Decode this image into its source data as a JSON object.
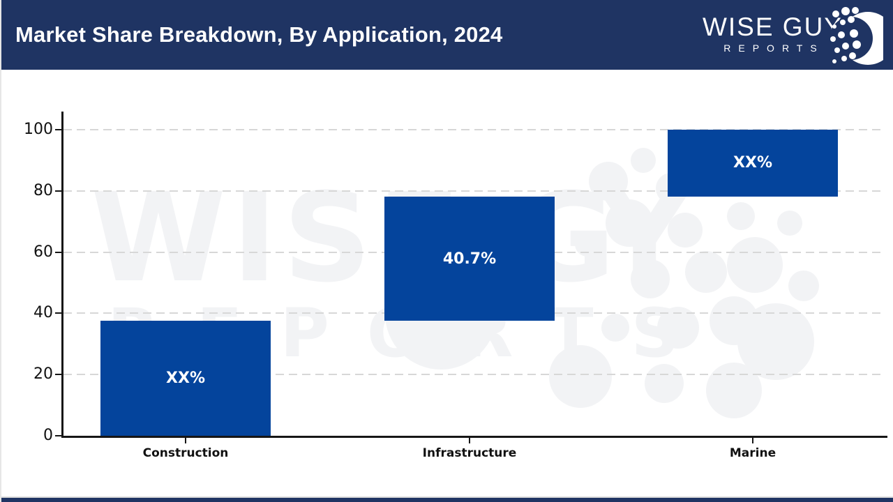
{
  "header": {
    "title": "Market Share Breakdown, By Application, 2024",
    "bg_color": "#1f3463",
    "logo": {
      "line1": "WISE GUY",
      "line2": "REPORTS"
    }
  },
  "watermark": {
    "line1": "WISE G",
    "line1b": "Y",
    "line2": "REPORTS"
  },
  "chart_data": {
    "type": "bar",
    "subtype": "floating-waterfall",
    "title": "Market Share Breakdown, By Application, 2024",
    "categories": [
      "Construction",
      "Infrastructure",
      "Marine"
    ],
    "segments": [
      {
        "category": "Construction",
        "start": 0,
        "end": 37.5,
        "label": "XX%"
      },
      {
        "category": "Infrastructure",
        "start": 37.5,
        "end": 78.2,
        "label": "40.7%"
      },
      {
        "category": "Marine",
        "start": 78.2,
        "end": 100,
        "label": "XX%"
      }
    ],
    "ylim": [
      0,
      100
    ],
    "yticks": [
      0,
      20,
      40,
      60,
      80,
      100
    ],
    "xlabel": "",
    "ylabel": "",
    "grid": "horizontal-dashed",
    "legend": "none",
    "bar_color": "#04449c",
    "bar_label_color": "#ffffff",
    "axis_color": "#161616",
    "grid_color": "#d7d7d7"
  }
}
